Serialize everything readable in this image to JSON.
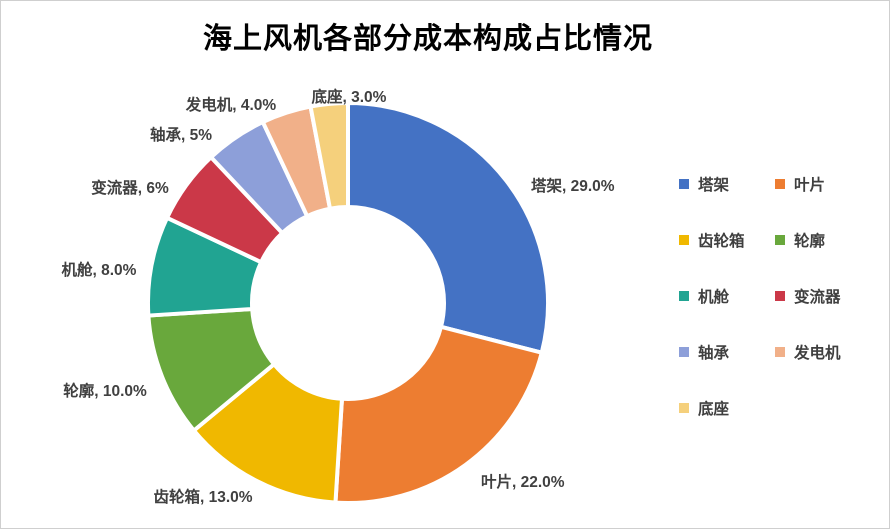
{
  "title": "海上风机各部分成本构成占比情况",
  "chart_data": {
    "type": "pie",
    "subtype": "doughnut",
    "title": "海上风机各部分成本构成占比情况",
    "categories": [
      "塔架",
      "叶片",
      "齿轮箱",
      "轮廓",
      "机舱",
      "变流器",
      "轴承",
      "发电机",
      "底座"
    ],
    "values": [
      29,
      22,
      13,
      10,
      8,
      6,
      5,
      4,
      3
    ],
    "unit": "percent",
    "data_labels": [
      "塔架, 29.0%",
      "叶片, 22.0%",
      "齿轮箱, 13.0%",
      "轮廓, 10.0%",
      "机舱, 8.0%",
      "变流器, 6%",
      "轴承, 5%",
      "发电机, 4.0%",
      "底座, 3.0%"
    ],
    "colors": [
      "#4472C4",
      "#ED7D31",
      "#F0B800",
      "#69A83C",
      "#21A492",
      "#CB3848",
      "#8D9FD9",
      "#F1B089",
      "#F5D07C"
    ],
    "start_angle_deg": 0,
    "direction": "clockwise",
    "hole_ratio": 0.48,
    "legend_position": "right",
    "legend_columns": 2,
    "slice_border_color": "#FFFFFF"
  },
  "legend": {
    "items": [
      "塔架",
      "叶片",
      "齿轮箱",
      "轮廓",
      "机舱",
      "变流器",
      "轴承",
      "发电机",
      "底座"
    ]
  },
  "style": {
    "label_color": "#404040",
    "title_color": "#000000"
  }
}
